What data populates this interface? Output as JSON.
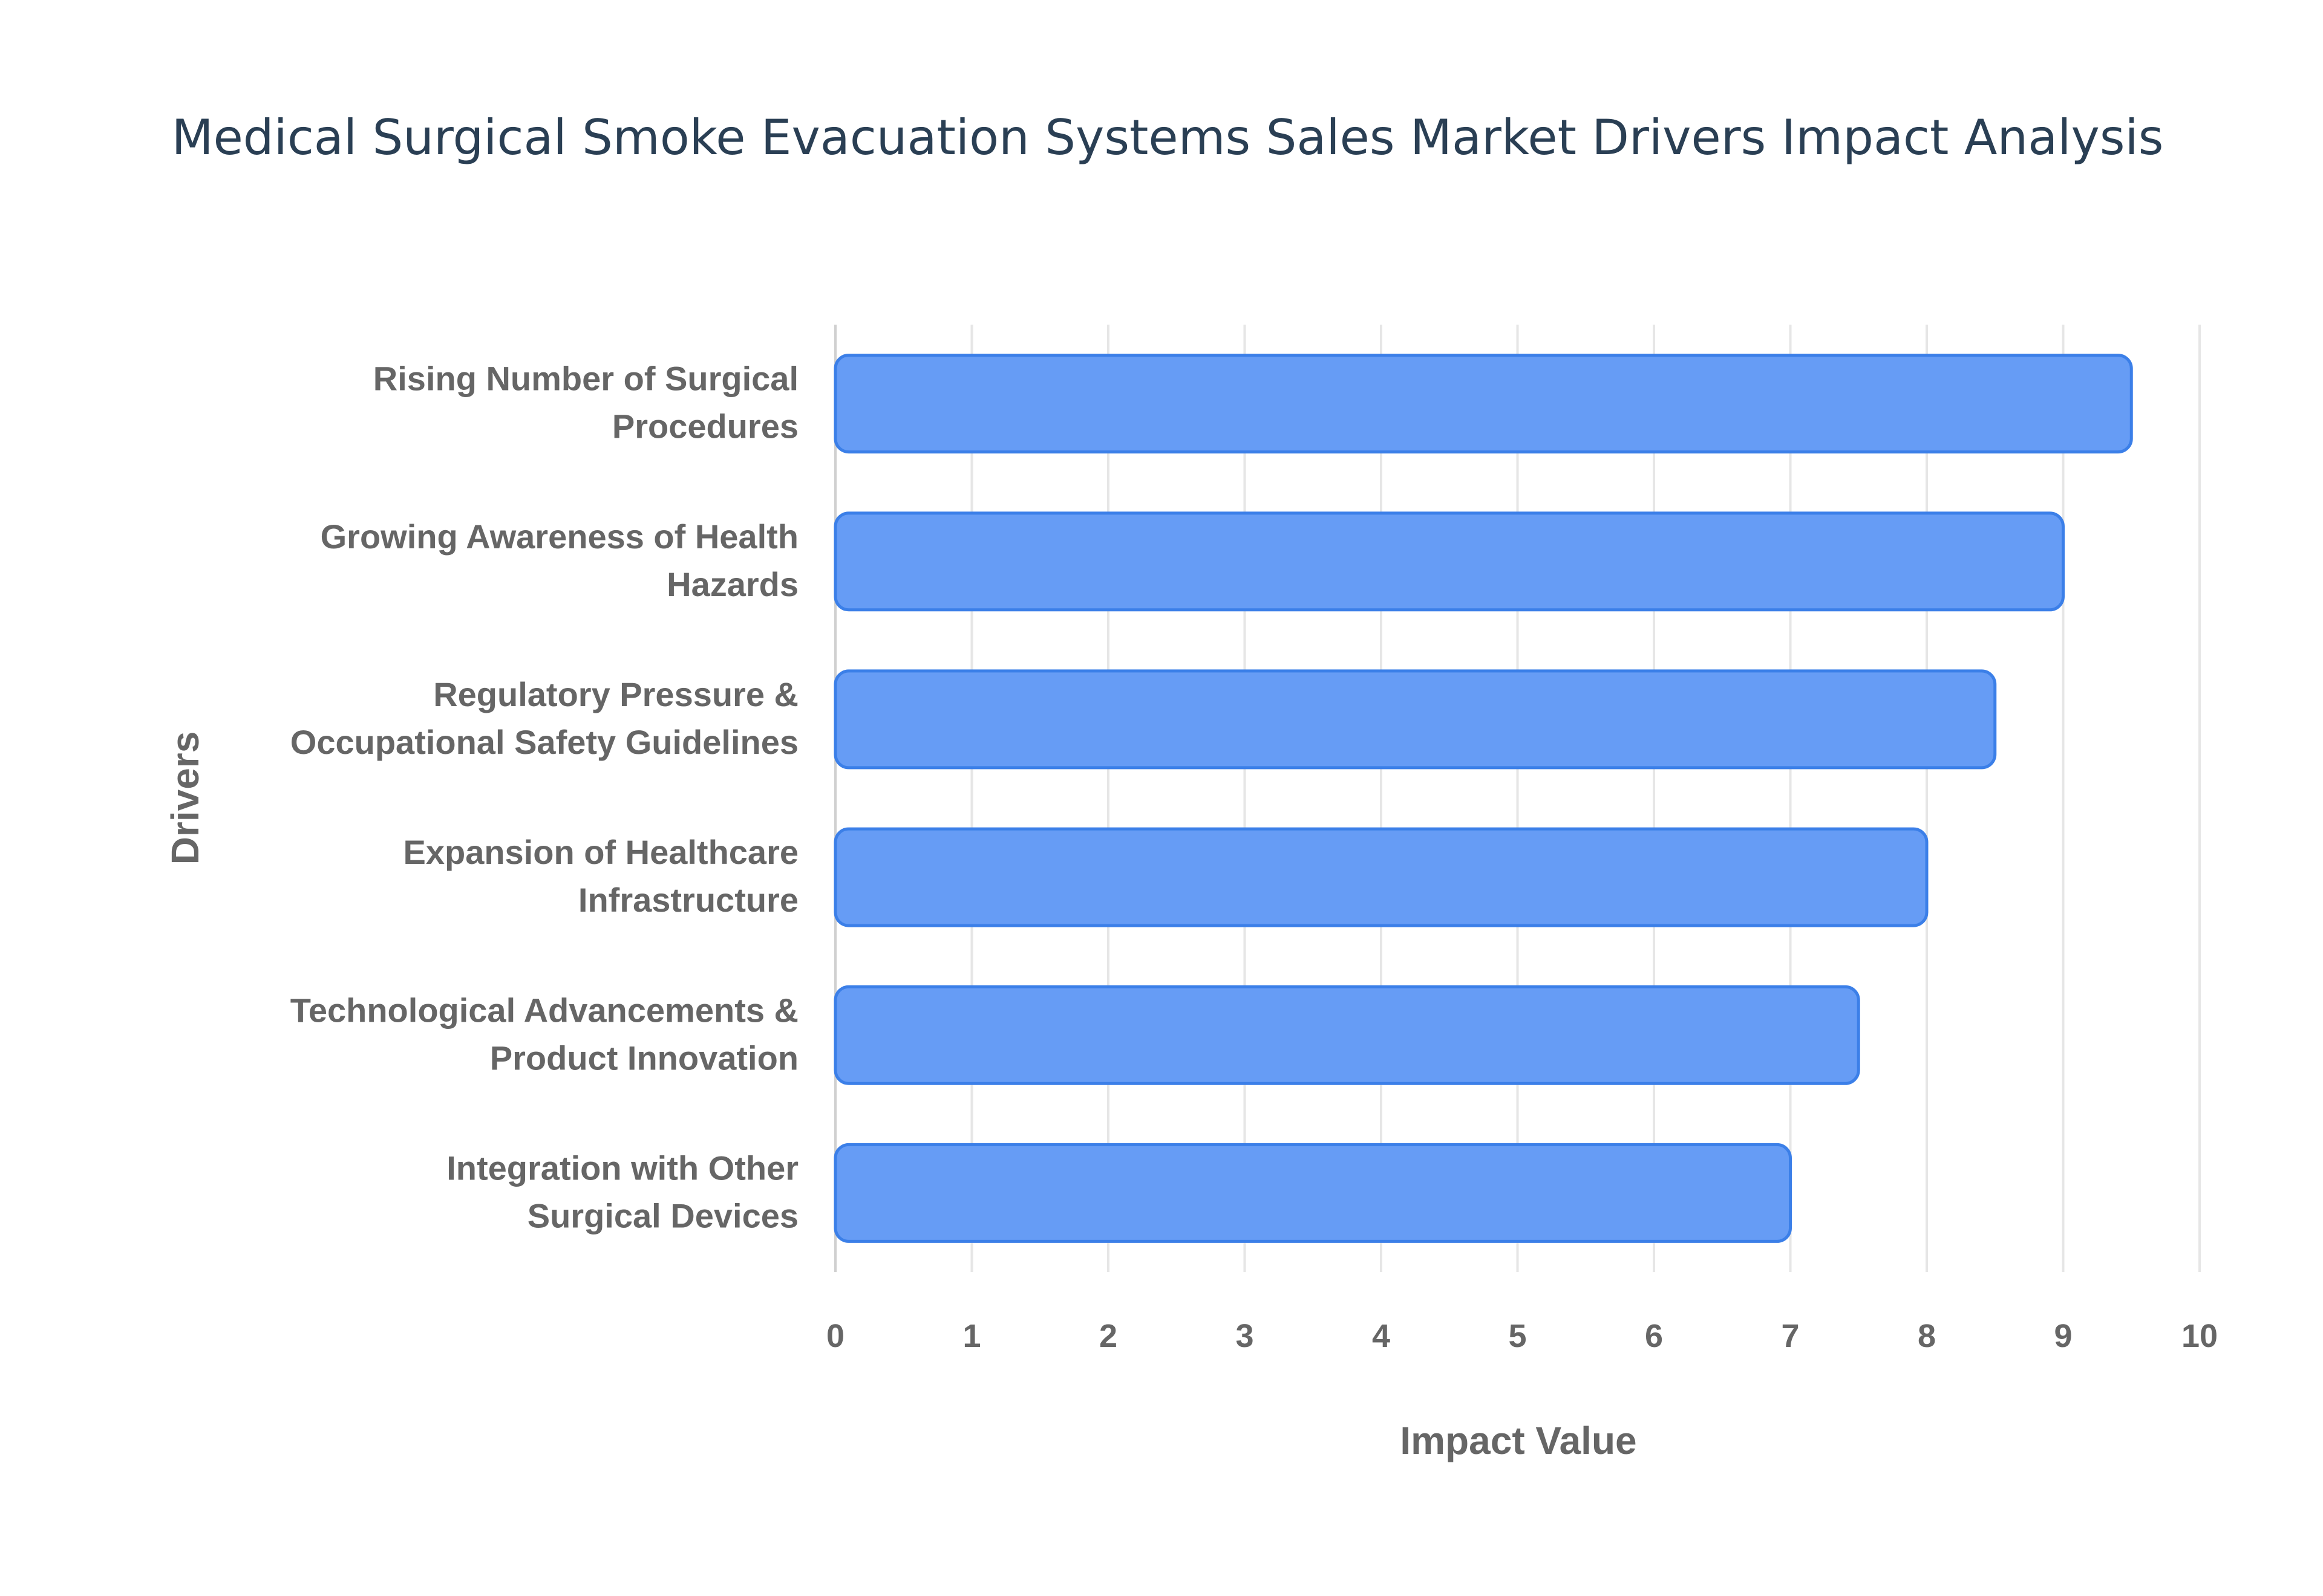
{
  "chart_data": {
    "type": "bar",
    "orientation": "horizontal",
    "title": "Medical Surgical Smoke Evacuation Systems Sales Market Drivers Impact Analysis",
    "xlabel": "Impact Value",
    "ylabel": "Drivers",
    "xlim": [
      0,
      10
    ],
    "xticks": [
      "0",
      "1",
      "2",
      "3",
      "4",
      "5",
      "6",
      "7",
      "8",
      "9",
      "10"
    ],
    "grid": true,
    "categories": [
      [
        "Rising Number of Surgical",
        "Procedures"
      ],
      [
        "Growing Awareness of Health",
        "Hazards"
      ],
      [
        "Regulatory Pressure &",
        "Occupational Safety Guidelines"
      ],
      [
        "Expansion of Healthcare",
        "Infrastructure"
      ],
      [
        "Technological Advancements &",
        "Product Innovation"
      ],
      [
        "Integration with Other",
        "Surgical Devices"
      ]
    ],
    "values": [
      9.5,
      9.0,
      8.5,
      8.0,
      7.5,
      7.0
    ],
    "bar_color": "#6199f5",
    "bar_border_color": "#3b7fe8"
  }
}
